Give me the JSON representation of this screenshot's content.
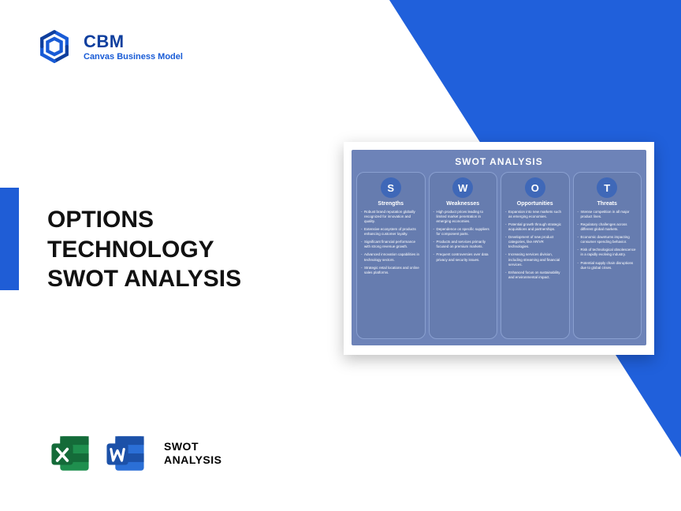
{
  "colors": {
    "brand_blue": "#185bd6",
    "brand_blue_dark": "#0f3f9e",
    "accent_bar": "#1f5dd6",
    "triangle": "#2060db",
    "swot_bg": "#6d83b8",
    "swot_col_bg": "#667caf",
    "swot_col_border": "#8aa0d0",
    "circle_bg": "#3f68b8",
    "excel_green": "#1f8f4e",
    "excel_green_dark": "#146b39",
    "word_blue": "#2b6fd6",
    "word_blue_dark": "#1c51a8"
  },
  "logo": {
    "title": "CBM",
    "subtitle": "Canvas Business Model"
  },
  "heading": {
    "line1": "OPTIONS",
    "line2": "TECHNOLOGY",
    "line3": "SWOT ANALYSIS"
  },
  "bottom": {
    "label_line1": "SWOT",
    "label_line2": "ANALYSIS"
  },
  "swot": {
    "title": "SWOT ANALYSIS",
    "columns": [
      {
        "letter": "S",
        "title": "Strengths",
        "items": [
          "Robust brand reputation globally recognized for innovation and quality.",
          "Extensive ecosystem of products enhancing customer loyalty.",
          "Significant financial performance with strong revenue growth.",
          "Advanced innovation capabilities in technology sectors.",
          "Strategic retail locations and online sales platforms."
        ]
      },
      {
        "letter": "W",
        "title": "Weaknesses",
        "items": [
          "High product prices leading to limited market penetration in emerging economies.",
          "Dependence on specific suppliers for component parts.",
          "Products and services primarily focused on premium markets.",
          "Frequent controversies over data privacy and security issues."
        ]
      },
      {
        "letter": "O",
        "title": "Opportunities",
        "items": [
          "Expansion into new markets such as emerging economies.",
          "Potential growth through strategic acquisitions and partnerships.",
          "Development of new product categories, like AR/VR technologies.",
          "Increasing services division, including streaming and financial services.",
          "Enhanced focus on sustainability and environmental impact."
        ]
      },
      {
        "letter": "T",
        "title": "Threats",
        "items": [
          "Intense competition in all major product lines.",
          "Regulatory challenges across different global markets.",
          "Economic downturns impacting consumer spending behavior.",
          "Risk of technological obsolescence in a rapidly evolving industry.",
          "Potential supply chain disruptions due to global crises."
        ]
      }
    ]
  }
}
